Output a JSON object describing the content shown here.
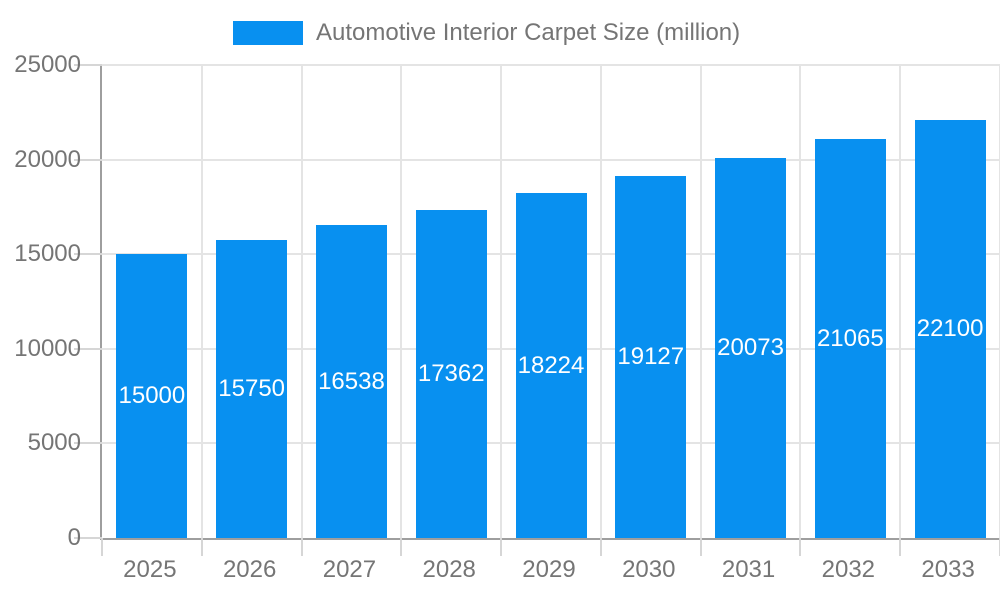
{
  "legend": {
    "label": "Automotive Interior Carpet Size (million)"
  },
  "chart_data": {
    "type": "bar",
    "title": "Automotive Interior Carpet Size (million)",
    "categories": [
      "2025",
      "2026",
      "2027",
      "2028",
      "2029",
      "2030",
      "2031",
      "2032",
      "2033"
    ],
    "values": [
      15000,
      15750,
      16538,
      17362,
      18224,
      19127,
      20073,
      21065,
      22100
    ],
    "xlabel": "",
    "ylabel": "",
    "ylim": [
      0,
      25000
    ],
    "yticks": [
      0,
      5000,
      10000,
      15000,
      20000,
      25000
    ],
    "grid": "horizontal value lines and vertical category boundary lines",
    "legend_position": "top-center",
    "bar_label_position": "centered inside bar"
  },
  "colors": {
    "bar": "#0890f0",
    "axis_text": "#757575",
    "bar_label_text": "#ffffff",
    "grid_line": "#e4e4e4",
    "axis_line": "#9e9e9e",
    "tick_line": "#d6d6d6",
    "background": "#ffffff"
  }
}
